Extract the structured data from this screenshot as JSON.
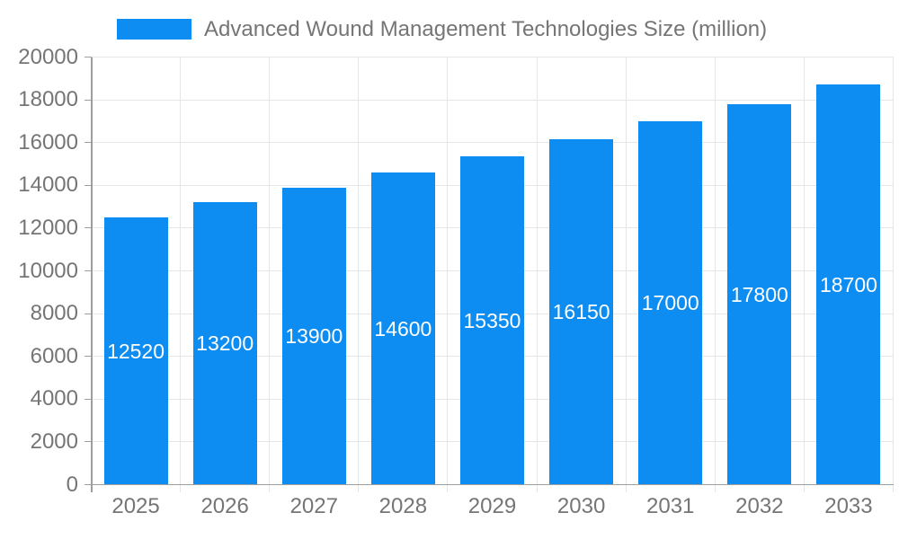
{
  "legend": {
    "label": "Advanced Wound Management Technologies Size (million)"
  },
  "colors": {
    "bar": "#0d8df2",
    "axis_text": "#757575",
    "gridline": "#e6e6e6",
    "axis_line": "#9e9e9e",
    "bar_label_text": "#ffffff",
    "background": "#ffffff"
  },
  "chart_data": {
    "type": "bar",
    "title": "Advanced Wound Management Technologies Size (million)",
    "categories": [
      "2025",
      "2026",
      "2027",
      "2028",
      "2029",
      "2030",
      "2031",
      "2032",
      "2033"
    ],
    "values": [
      12520,
      13200,
      13900,
      14600,
      15350,
      16150,
      17000,
      17800,
      18700
    ],
    "bar_labels": [
      "12520",
      "13200",
      "13900",
      "14600",
      "15350",
      "16150",
      "17000",
      "17800",
      "18700"
    ],
    "xlabel": "",
    "ylabel": "",
    "ylim": [
      0,
      20000
    ],
    "ytick_step": 2000,
    "ytick_labels": [
      "0",
      "2000",
      "4000",
      "6000",
      "8000",
      "10000",
      "12000",
      "14000",
      "16000",
      "18000",
      "20000"
    ],
    "grid": true,
    "legend_position": "top"
  }
}
